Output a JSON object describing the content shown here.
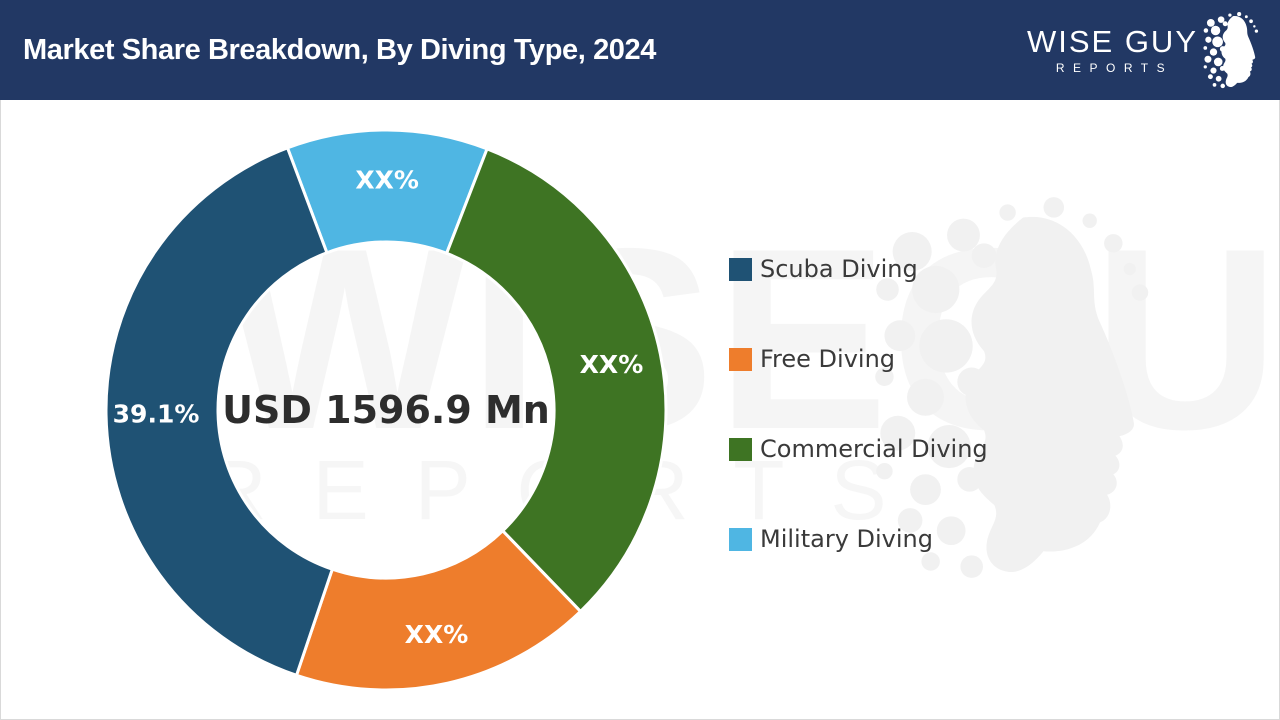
{
  "header": {
    "title": "Market Share Breakdown, By Diving Type, 2024",
    "bg_color": "#223864",
    "logo": {
      "line1": "WISE GUY",
      "line2": "REPORTS"
    }
  },
  "chart_data": {
    "type": "pie",
    "subtype": "donut",
    "title": "Market Share Breakdown, By Diving Type, 2024",
    "center_label": "USD 1596.9 Mn",
    "start_angle_deg": -20.6,
    "direction": "clockwise",
    "inner_radius_ratio": 0.6,
    "slices": [
      {
        "name": "Military Diving",
        "value_pct": 11.6,
        "label": "XX%",
        "color": "#4fb6e3"
      },
      {
        "name": "Commercial Diving",
        "value_pct": 31.9,
        "label": "XX%",
        "color": "#3e7423"
      },
      {
        "name": "Free Diving",
        "value_pct": 17.4,
        "label": "XX%",
        "color": "#ee7d2c"
      },
      {
        "name": "Scuba Diving",
        "value_pct": 39.1,
        "label": "39.1%",
        "color": "#1f5274"
      }
    ]
  },
  "legend": {
    "items": [
      {
        "label": "Scuba Diving",
        "color": "#1f5274"
      },
      {
        "label": "Free Diving",
        "color": "#ee7d2c"
      },
      {
        "label": "Commercial Diving",
        "color": "#3e7423"
      },
      {
        "label": "Military Diving",
        "color": "#4fb6e3"
      }
    ]
  },
  "watermark": {
    "line1": "WISEGUY",
    "line2": "REPORTS",
    "color": "#f1f1f1"
  },
  "frame": {
    "border_color": "#d9d9d9"
  }
}
